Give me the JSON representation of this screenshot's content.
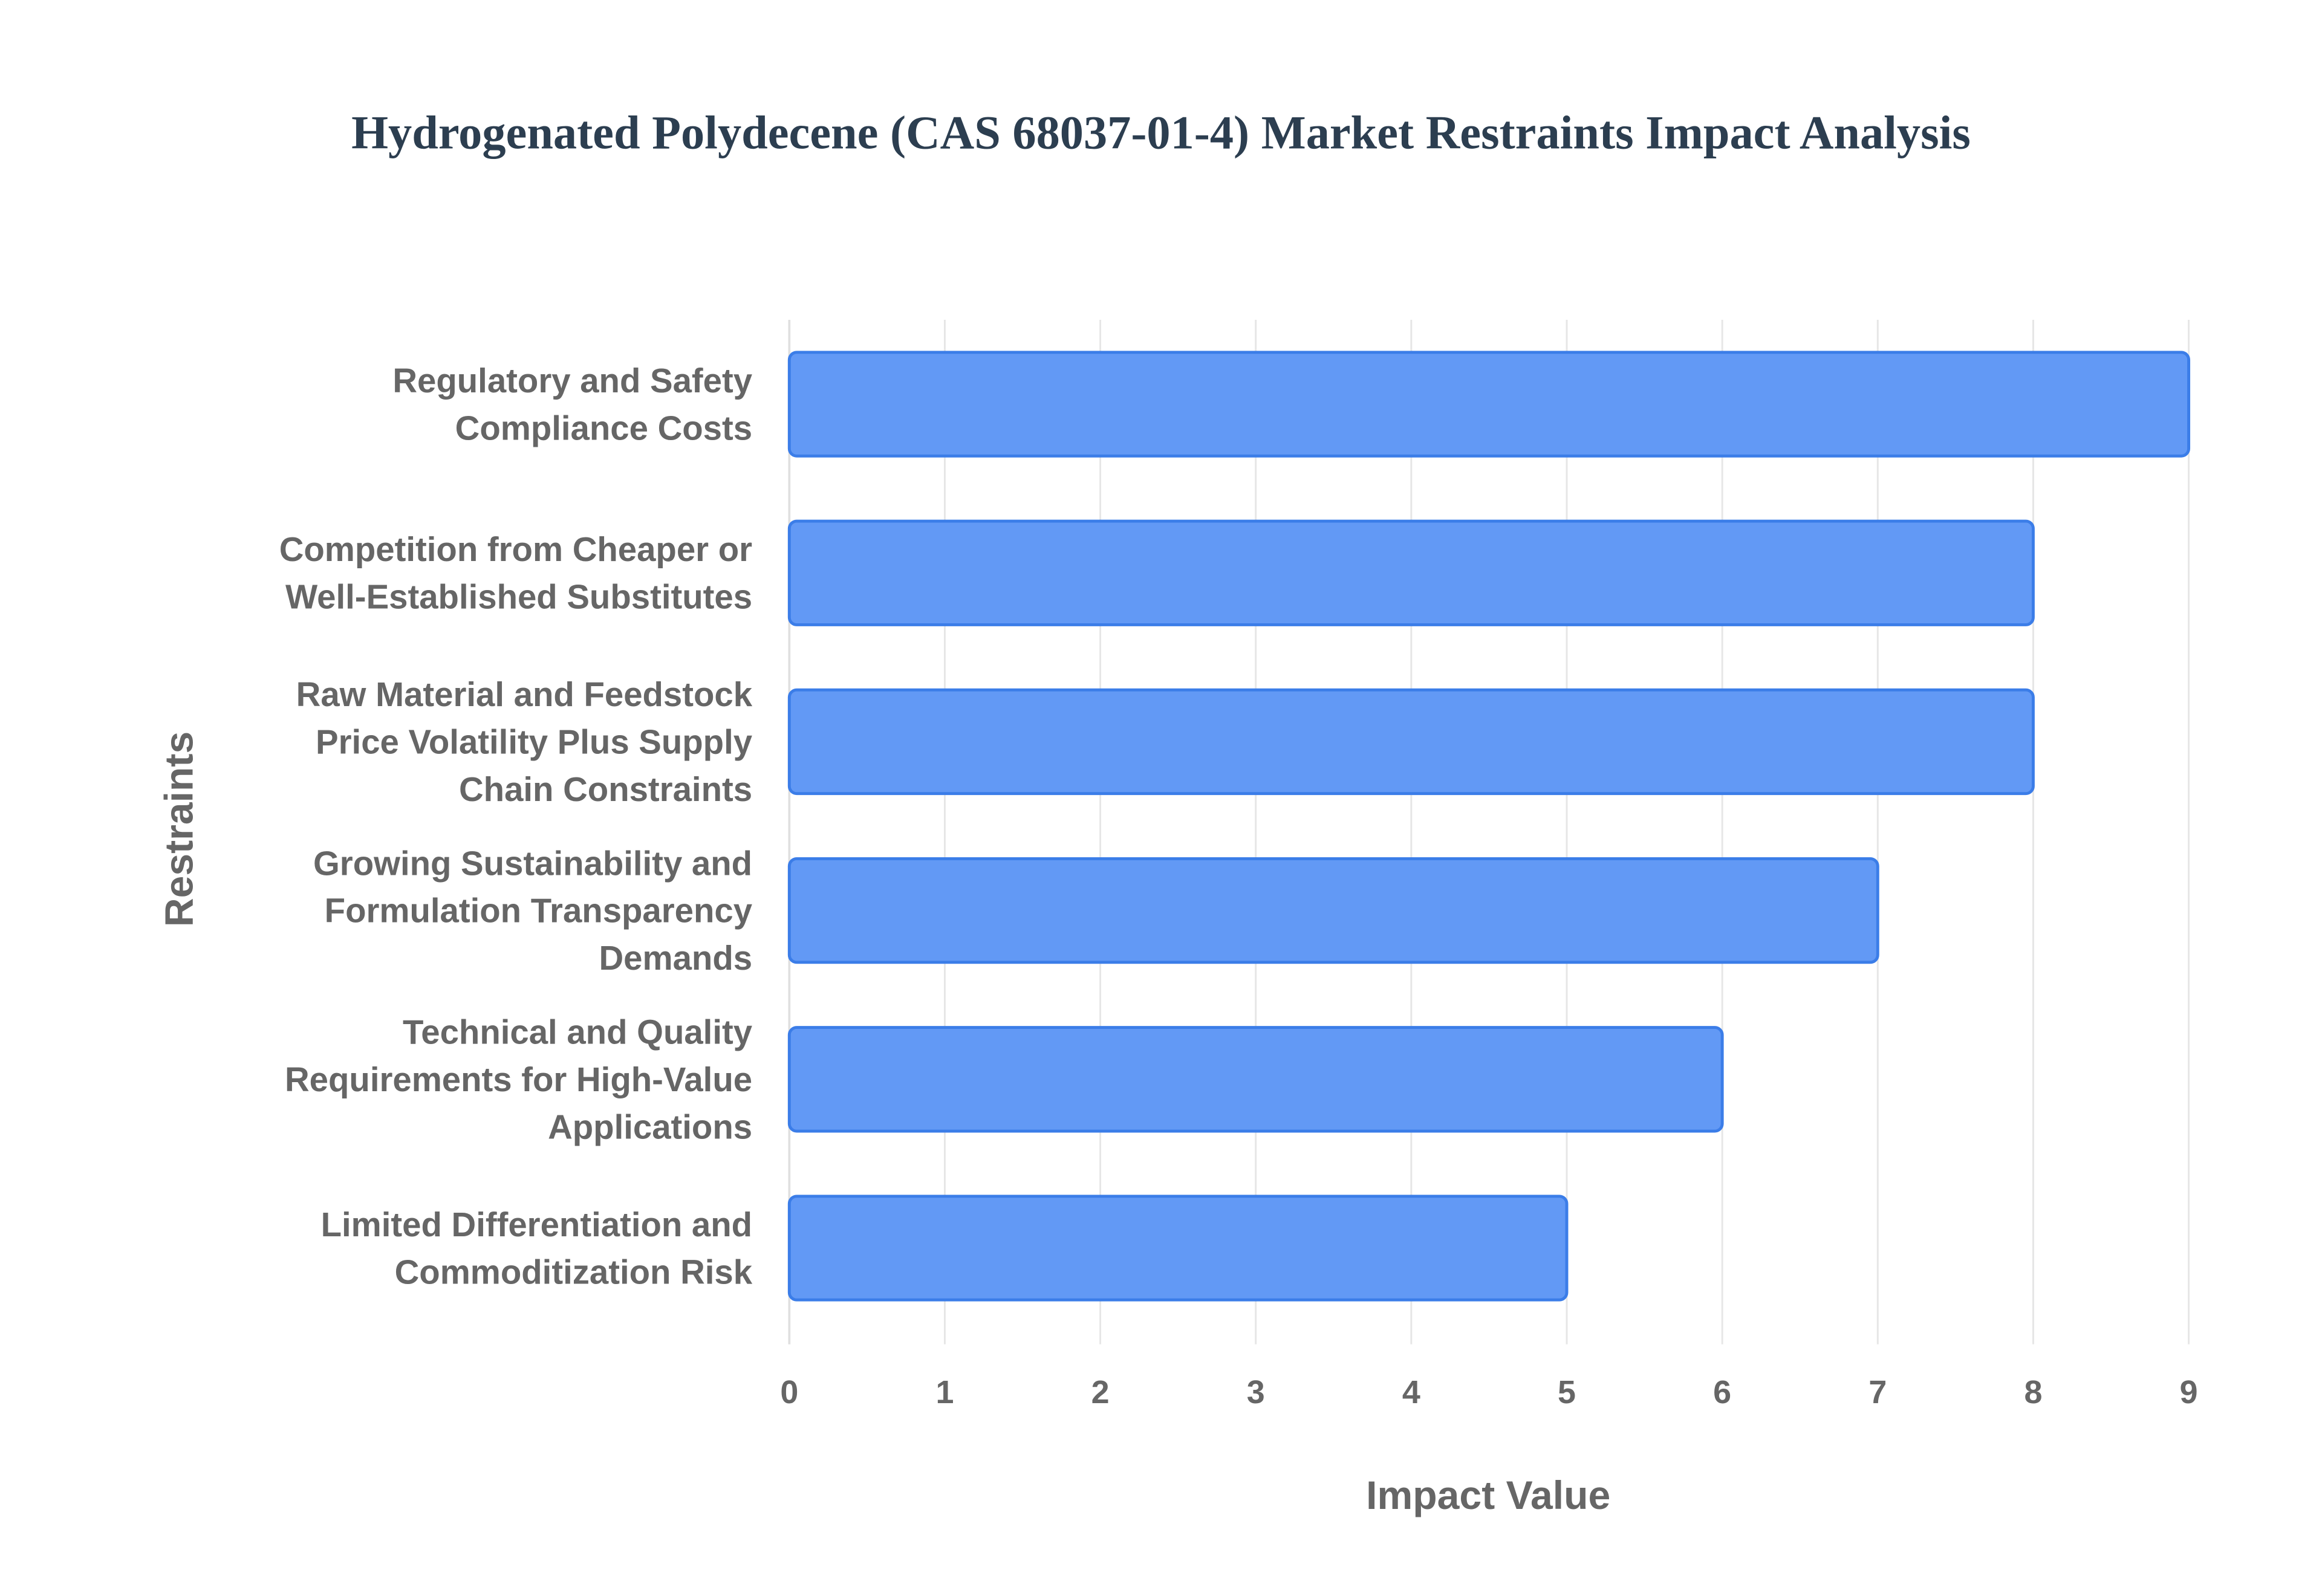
{
  "chart_data": {
    "type": "hbar",
    "title": "Hydrogenated Polydecene (CAS 68037-01-4) Market Restraints Impact Analysis",
    "x_label": "Impact Value",
    "y_label": "Restraints",
    "categories": [
      "Regulatory and Safety Compliance Costs",
      "Competition from Cheaper or Well-Established Substitutes",
      "Raw Material and Feedstock Price Volatility Plus Supply Chain Constraints",
      "Growing Sustainability and Formulation Transparency Demands",
      "Technical and Quality Requirements for High-Value Applications",
      "Limited Differentiation and Commoditization Risk"
    ],
    "values": [
      9,
      8,
      8,
      7,
      6,
      5
    ],
    "color": "#6299f5",
    "edge_color": "#3b7de8",
    "xlim": [
      0,
      9
    ],
    "xticks": [
      0,
      1,
      2,
      3,
      4,
      5,
      6,
      7,
      8,
      9
    ],
    "grid": true
  }
}
